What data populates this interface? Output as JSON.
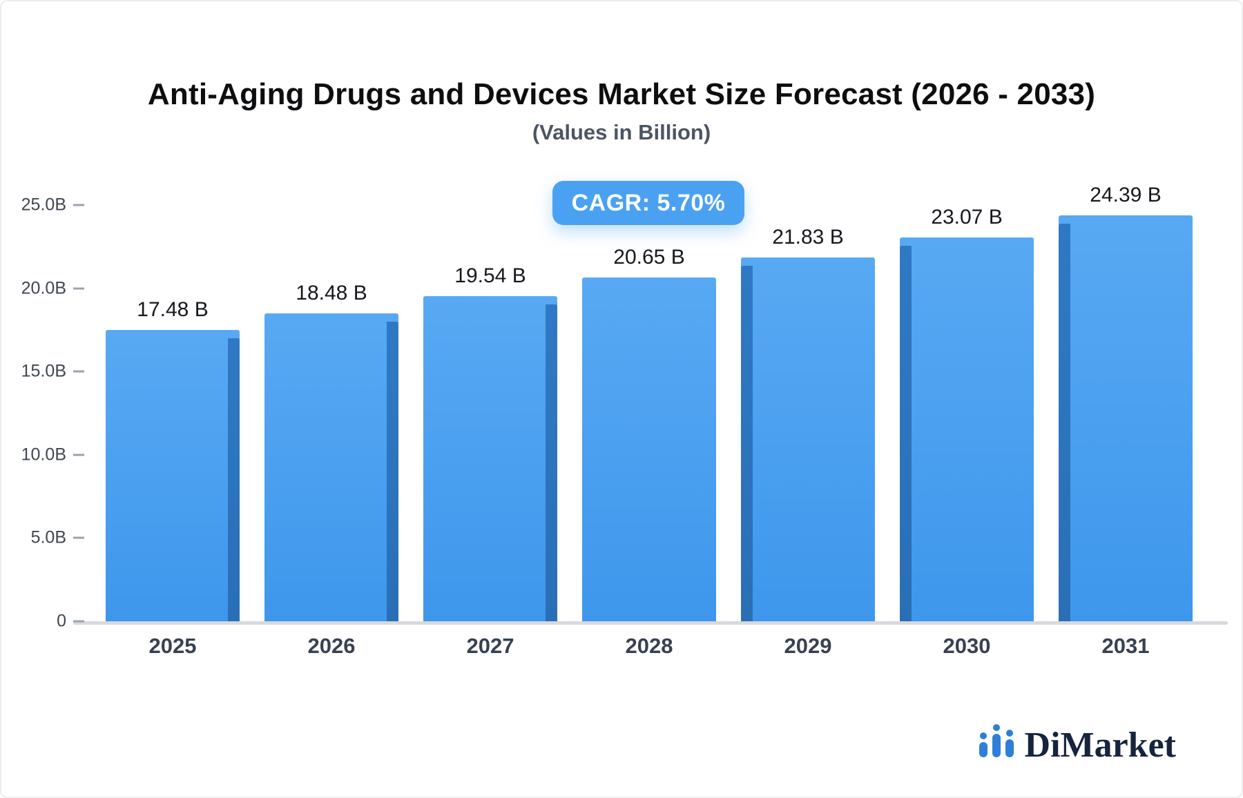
{
  "header": {
    "title": "Anti-Aging Drugs and Devices Market Size Forecast (2026 - 2033)",
    "subtitle": "(Values in Billion)"
  },
  "cagr_badge": {
    "label": "CAGR: 5.70%"
  },
  "chart_data": {
    "type": "bar",
    "categories": [
      "2025",
      "2026",
      "2027",
      "2028",
      "2029",
      "2030",
      "2031"
    ],
    "values": [
      17.48,
      18.48,
      19.54,
      20.65,
      21.83,
      23.07,
      24.39
    ],
    "value_labels": [
      "17.48 B",
      "18.48 B",
      "19.54 B",
      "20.65 B",
      "21.83 B",
      "23.07 B",
      "24.39 B"
    ],
    "title": "Anti-Aging Drugs and Devices Market Size Forecast (2026 - 2033)",
    "xlabel": "",
    "ylabel": "",
    "ylim": [
      0,
      25
    ],
    "ytick_labels": [
      "25.0B",
      "20.0B",
      "15.0B",
      "10.0B",
      "5.0B",
      "0"
    ],
    "ytick_values": [
      25,
      20,
      15,
      10,
      5,
      0
    ],
    "grid": "off",
    "legend": "none",
    "bar_color_top": "#58a9f3",
    "bar_color_bottom": "#3e97ec",
    "bar_side_color": "#2a6fb6",
    "bar_sides": [
      "right",
      "right",
      "right",
      "none",
      "left",
      "left",
      "left"
    ]
  },
  "logo": {
    "text": "DiMarket"
  }
}
